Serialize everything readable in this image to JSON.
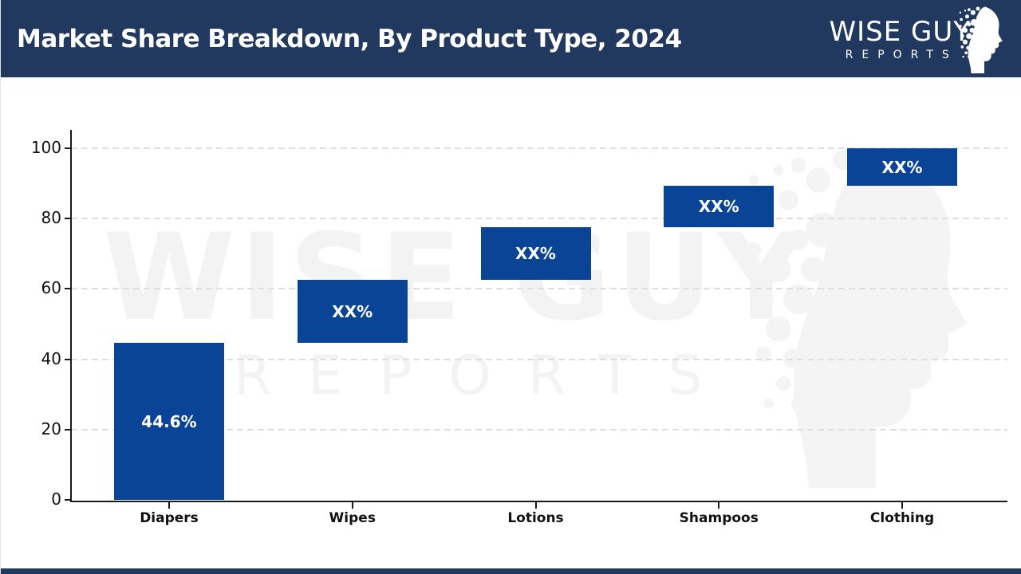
{
  "header": {
    "title": "Market Share Breakdown, By Product Type, 2024",
    "logo": {
      "line1": "WISE GUY",
      "line2": "REPORTS"
    }
  },
  "watermark": {
    "line1": "WISE GUY",
    "line2": "REPORTS"
  },
  "chart_data": {
    "type": "bar",
    "subtype": "waterfall",
    "title": "Market Share Breakdown, By Product Type, 2024",
    "categories": [
      "Diapers",
      "Wipes",
      "Lotions",
      "Shampoos",
      "Clothing"
    ],
    "segments": [
      {
        "category": "Diapers",
        "start": 0,
        "end": 44.6,
        "label": "44.6%"
      },
      {
        "category": "Wipes",
        "start": 44.6,
        "end": 62.5,
        "label": "XX%"
      },
      {
        "category": "Lotions",
        "start": 62.5,
        "end": 77.5,
        "label": "XX%"
      },
      {
        "category": "Shampoos",
        "start": 77.5,
        "end": 89.3,
        "label": "XX%"
      },
      {
        "category": "Clothing",
        "start": 89.3,
        "end": 100,
        "label": "XX%"
      }
    ],
    "ylim": [
      0,
      100
    ],
    "yticks": [
      0,
      20,
      40,
      60,
      80,
      100
    ],
    "xlabel": "",
    "ylabel": "",
    "grid": "horizontal-dashed",
    "legend": "none",
    "bar_color": "#0a4496",
    "bar_label_color": "#ffffff"
  },
  "colors": {
    "header_bg": "#22395f",
    "footer_bg": "#22395f",
    "bar": "#0a4496",
    "grid": "#dedede",
    "axis": "#1a1a1a",
    "watermark": "#f3f3f3"
  }
}
